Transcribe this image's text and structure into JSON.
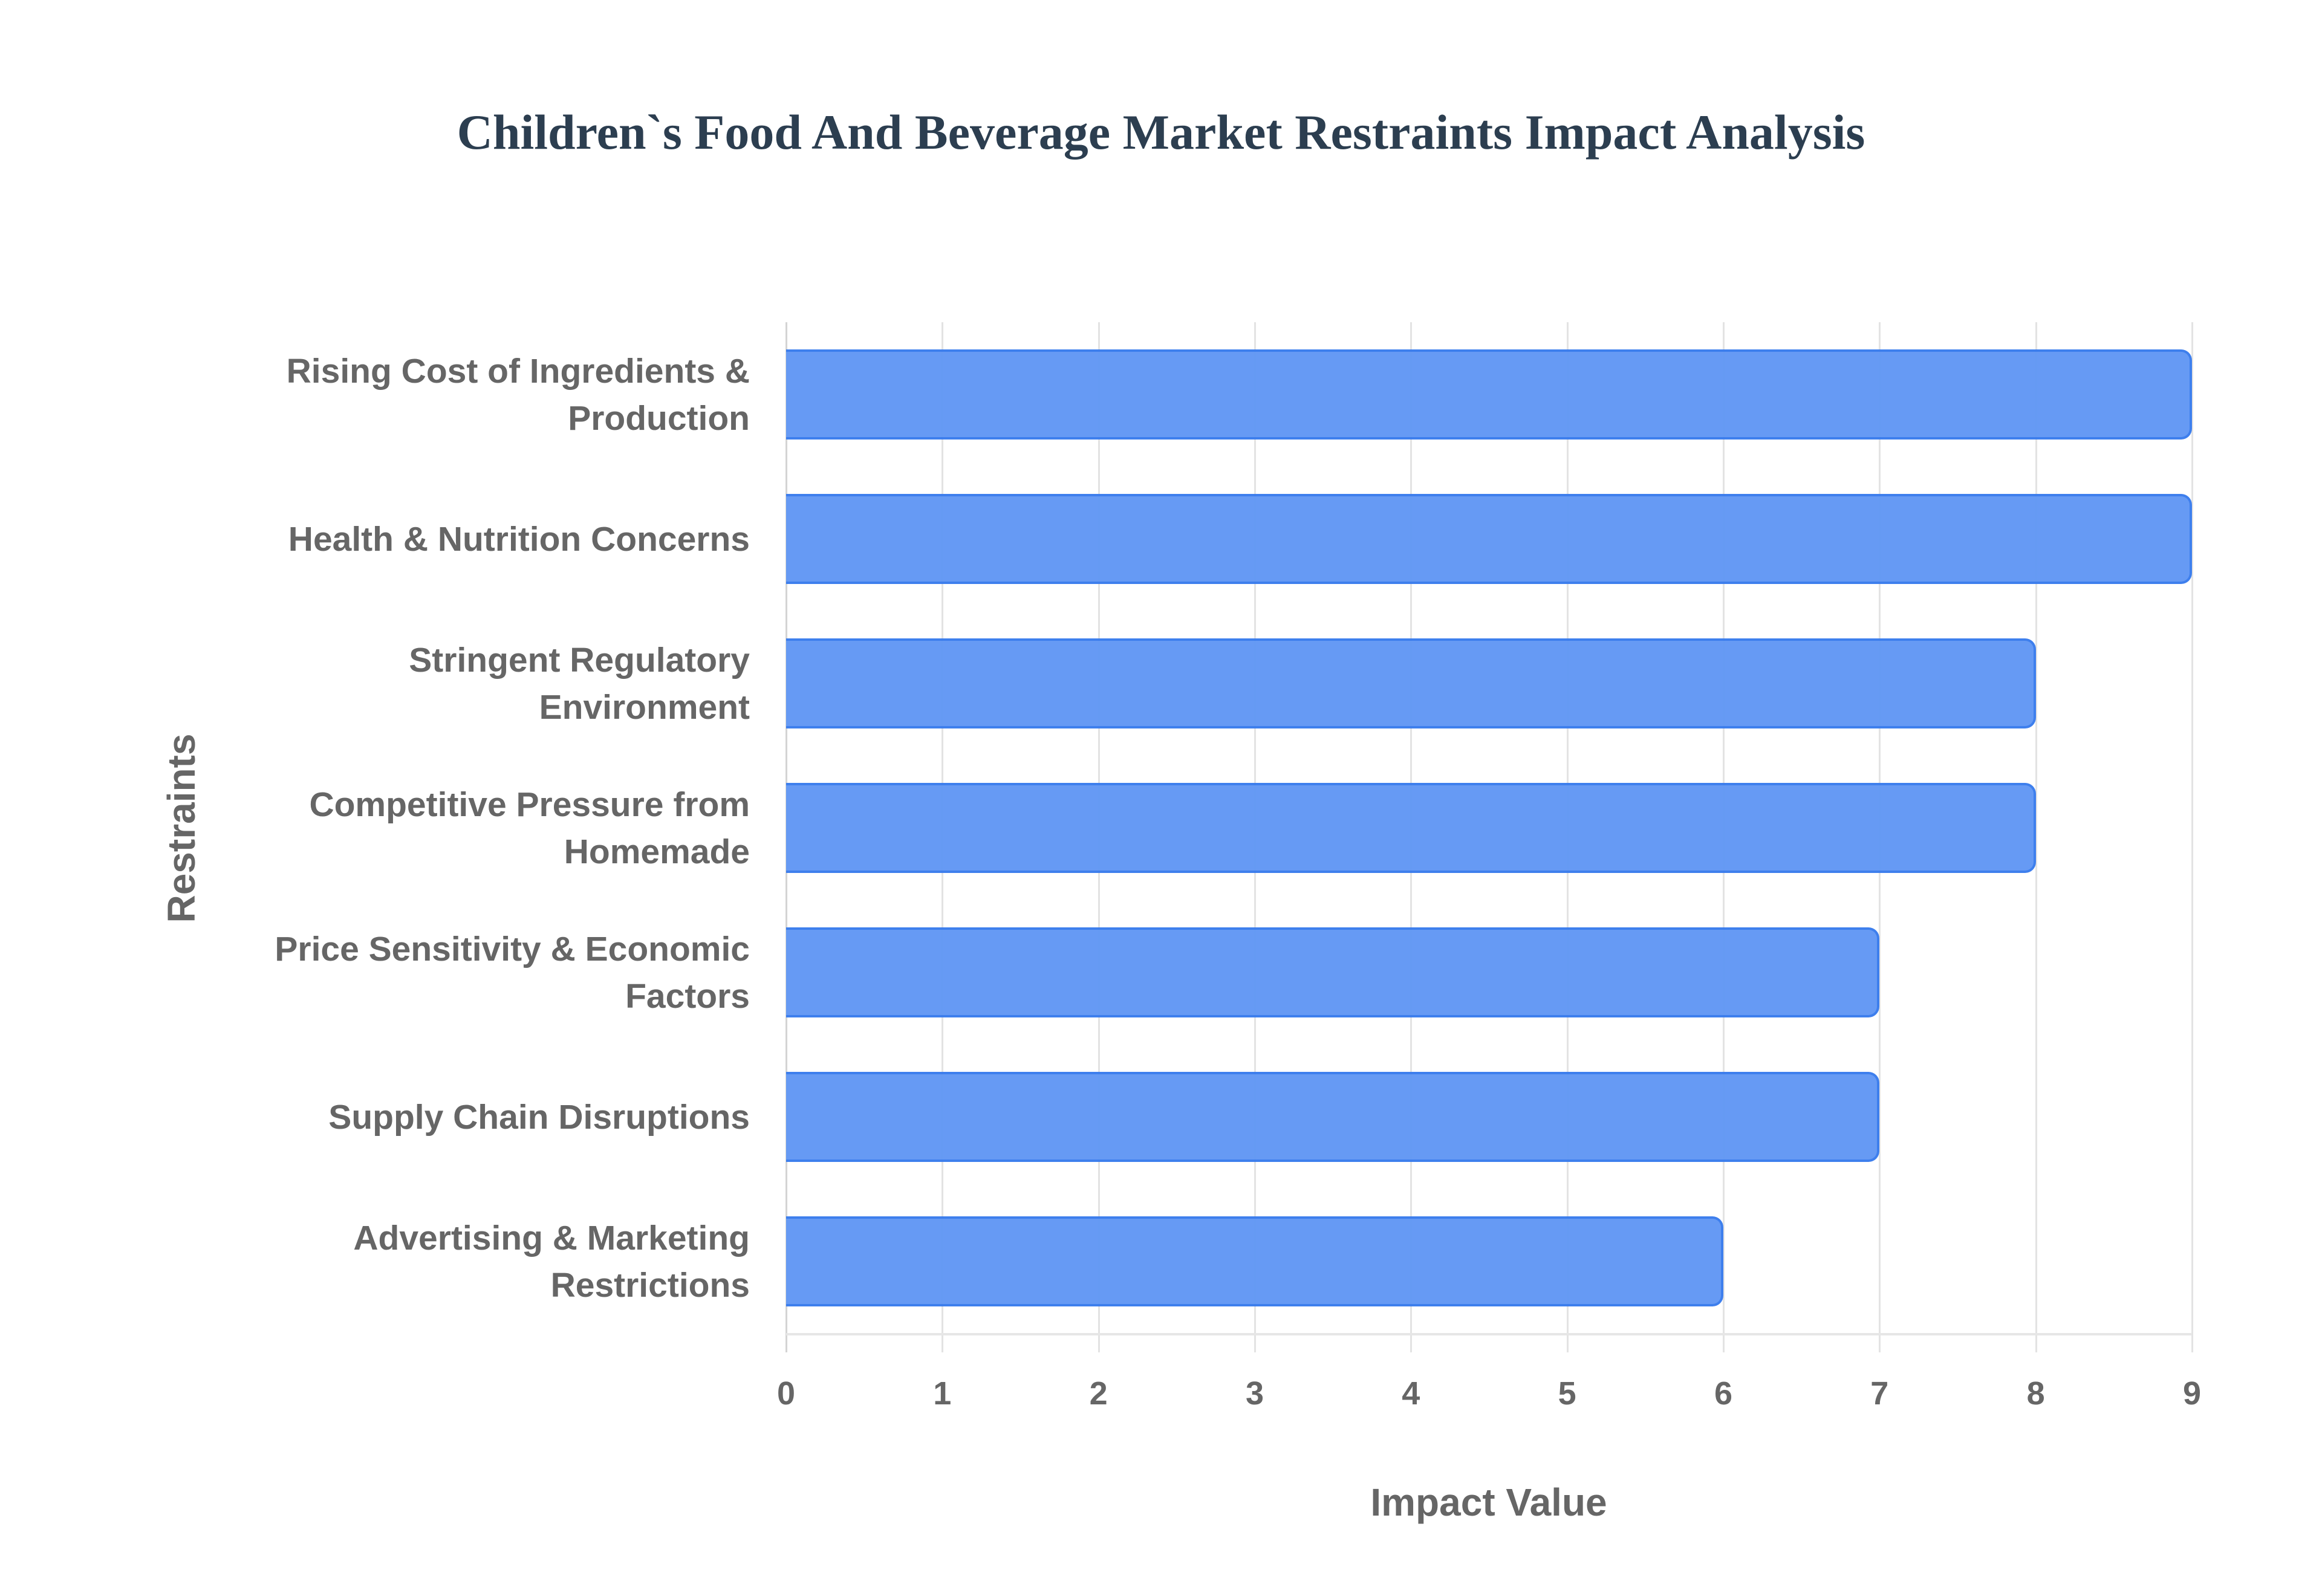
{
  "chart_data": {
    "type": "bar",
    "orientation": "horizontal",
    "title": "Children`s Food And Beverage Market Restraints Impact Analysis",
    "xlabel": "Impact Value",
    "ylabel": "Restraints",
    "xlim": [
      0,
      9
    ],
    "xticks": [
      "0",
      "1",
      "2",
      "3",
      "4",
      "5",
      "6",
      "7",
      "8",
      "9"
    ],
    "grid": true,
    "legend": null,
    "categories": [
      [
        "Rising Cost of Ingredients &",
        "Production"
      ],
      [
        "Health & Nutrition Concerns"
      ],
      [
        "Stringent Regulatory",
        "Environment"
      ],
      [
        "Competitive Pressure from",
        "Homemade"
      ],
      [
        "Price Sensitivity & Economic",
        "Factors"
      ],
      [
        "Supply Chain Disruptions"
      ],
      [
        "Advertising & Marketing",
        "Restrictions"
      ]
    ],
    "values": [
      9,
      9,
      8,
      8,
      7,
      7,
      6
    ],
    "colors": {
      "bar_fill": "#6399f4",
      "bar_border": "#3b7ded",
      "title": "#2c3e50",
      "axis_text": "#666666",
      "grid": "#e3e3e3"
    }
  }
}
